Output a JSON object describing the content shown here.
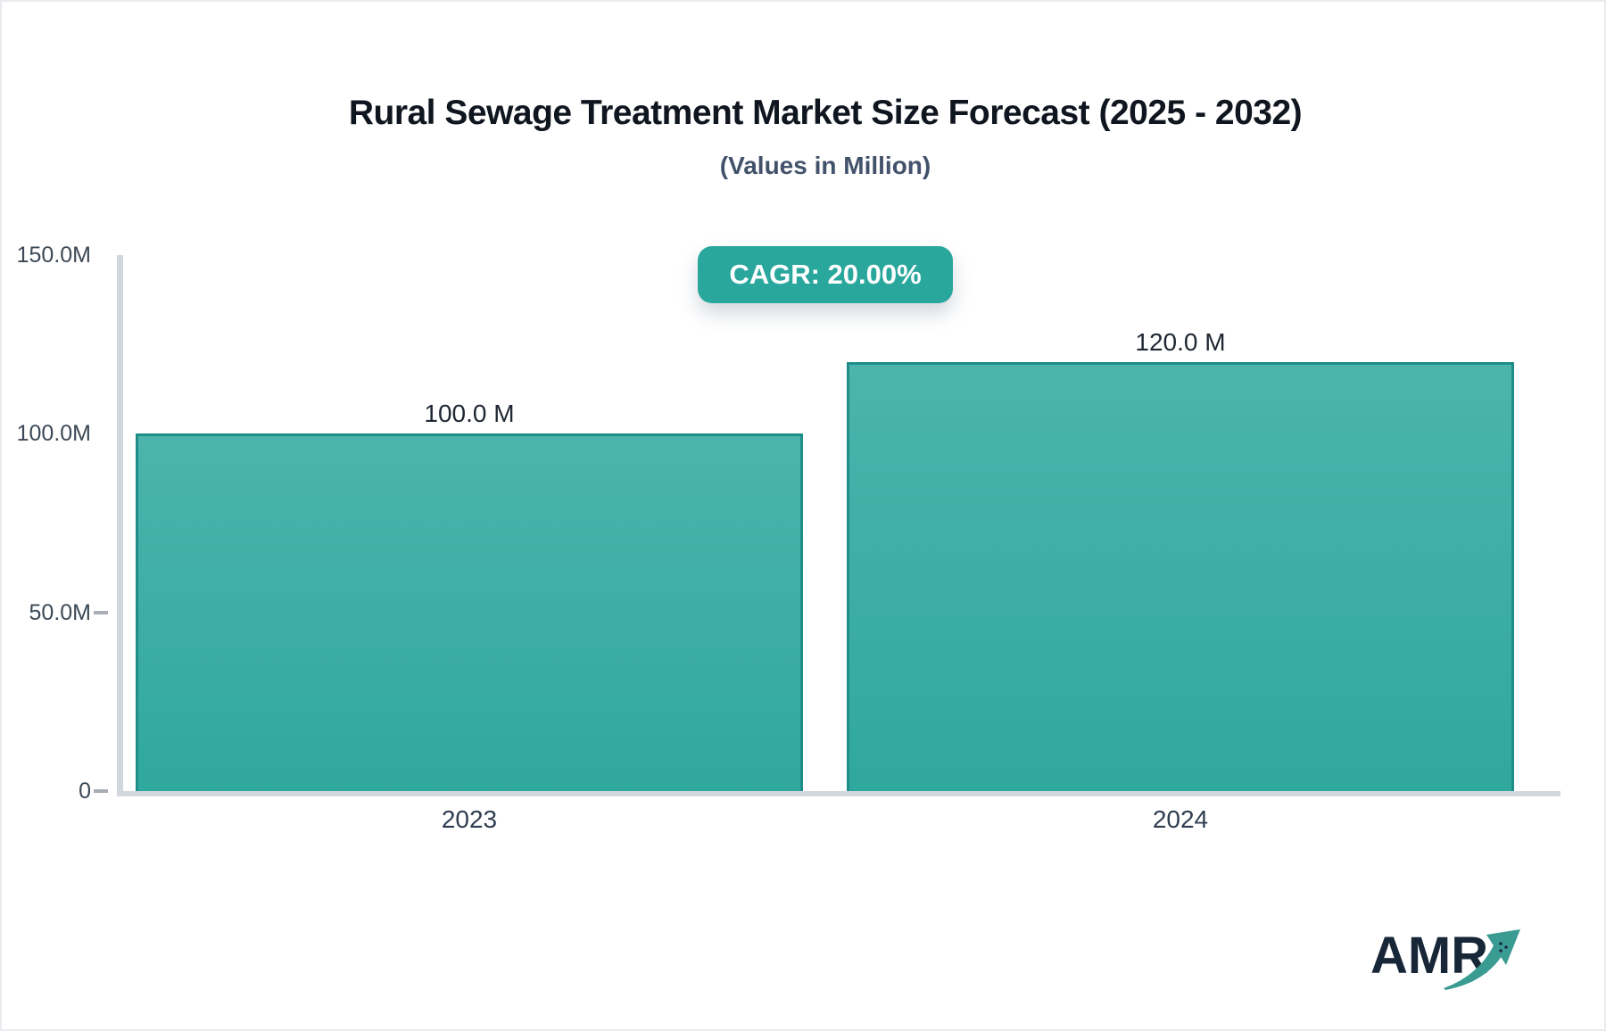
{
  "header": {
    "title": "Rural Sewage Treatment Market Size Forecast (2025 - 2032)",
    "subtitle": "(Values in Million)",
    "cagr_badge_label": "CAGR: 20.00%"
  },
  "chart_data": {
    "type": "bar",
    "title": "Rural Sewage Treatment Market Size Forecast (2025 - 2032)",
    "subtitle": "(Values in Million)",
    "cagr_percent": 20.0,
    "unit": "Million",
    "categories": [
      "2023",
      "2024"
    ],
    "values": [
      100.0,
      120.0
    ],
    "value_labels": [
      "100.0 M",
      "120.0 M"
    ],
    "ylim": [
      0,
      150
    ],
    "yticks": [
      {
        "value": 150,
        "label": "150.0M",
        "dash": false
      },
      {
        "value": 100,
        "label": "100.0M",
        "dash": false
      },
      {
        "value": 50,
        "label": "50.0M",
        "dash": true
      },
      {
        "value": 0,
        "label": "0",
        "dash": true
      }
    ],
    "grid": false,
    "legend": false,
    "colors": {
      "bar_fill_top": "#4cb4ab",
      "bar_fill_bottom": "#2fa89d",
      "bar_border": "#1f8e88",
      "badge_background": "#2aa79d",
      "axis_line": "#d3d8de"
    }
  },
  "logo": {
    "text": "AMR",
    "text_color": "#182737",
    "arrow_color": "#3a9b92"
  }
}
